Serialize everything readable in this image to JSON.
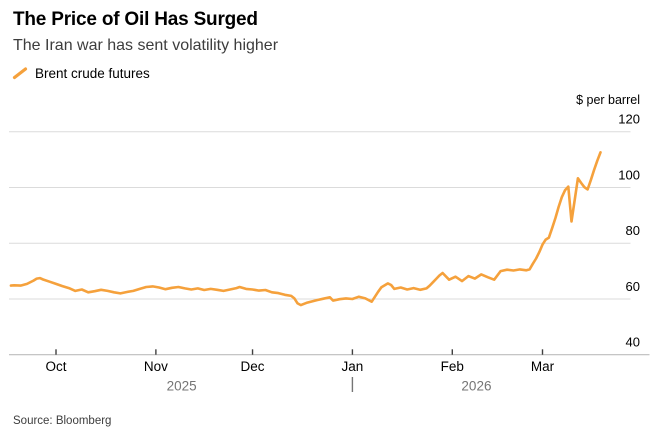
{
  "header": {
    "title": "The Price of Oil Has Surged",
    "subtitle": "The Iran war has sent volatility higher",
    "legend": {
      "label": "Brent crude futures"
    }
  },
  "footer": {
    "source": "Source: Bloomberg"
  },
  "colors": {
    "line": "#F5A13C",
    "gridline": "#DBDBDB",
    "axis_line": "#BDBDBD",
    "tick": "#3F3F3F",
    "axis_text": "#000000",
    "year_text": "#757575",
    "subtitle_text": "#3D3D3D",
    "source_text": "#3D3D3D"
  },
  "chart_data": {
    "type": "line",
    "title": "The Price of Oil Has Surged",
    "subtitle": "The Iran war has sent volatility higher",
    "y_axis": {
      "unit_label": "$ per barrel",
      "ticks": [
        40,
        60,
        80,
        100,
        120
      ],
      "min": 40,
      "max": 124,
      "gridlines": true,
      "label_side": "right"
    },
    "x_axis": {
      "start_date": "2025-09-17",
      "end_date": "2026-03-19",
      "day_unit": "days since start_date",
      "month_ticks": [
        {
          "label": "Oct",
          "day": 14
        },
        {
          "label": "Nov",
          "day": 45
        },
        {
          "label": "Dec",
          "day": 75
        },
        {
          "label": "Jan",
          "day": 106
        },
        {
          "label": "Feb",
          "day": 137
        },
        {
          "label": "Mar",
          "day": 165
        }
      ],
      "year_labels": [
        {
          "label": "2025",
          "day": 53
        },
        {
          "label": "2026",
          "day": 144.5
        }
      ],
      "year_separator_day": 106
    },
    "series": [
      {
        "name": "Brent crude futures",
        "color": "#F5A13C",
        "points": [
          [
            0,
            64.8
          ],
          [
            1,
            64.9
          ],
          [
            3,
            64.8
          ],
          [
            5,
            65.4
          ],
          [
            7,
            66.6
          ],
          [
            8,
            67.3
          ],
          [
            9,
            67.5
          ],
          [
            10,
            67.0
          ],
          [
            12,
            66.2
          ],
          [
            14,
            65.4
          ],
          [
            16,
            64.6
          ],
          [
            18,
            63.9
          ],
          [
            20,
            62.9
          ],
          [
            22,
            63.4
          ],
          [
            24,
            62.4
          ],
          [
            26,
            62.8
          ],
          [
            28,
            63.3
          ],
          [
            30,
            62.9
          ],
          [
            32,
            62.4
          ],
          [
            34,
            62.0
          ],
          [
            36,
            62.5
          ],
          [
            38,
            62.9
          ],
          [
            40,
            63.6
          ],
          [
            42,
            64.3
          ],
          [
            44,
            64.5
          ],
          [
            46,
            64.1
          ],
          [
            48,
            63.5
          ],
          [
            50,
            64.0
          ],
          [
            52,
            64.3
          ],
          [
            54,
            63.8
          ],
          [
            56,
            63.4
          ],
          [
            58,
            63.8
          ],
          [
            60,
            63.2
          ],
          [
            62,
            63.6
          ],
          [
            64,
            63.3
          ],
          [
            66,
            62.9
          ],
          [
            68,
            63.4
          ],
          [
            70,
            63.9
          ],
          [
            71,
            64.3
          ],
          [
            73,
            63.6
          ],
          [
            75,
            63.4
          ],
          [
            77,
            63.0
          ],
          [
            79,
            63.2
          ],
          [
            81,
            62.4
          ],
          [
            83,
            62.1
          ],
          [
            85,
            61.5
          ],
          [
            87,
            61.1
          ],
          [
            88,
            60.2
          ],
          [
            89,
            58.4
          ],
          [
            90,
            57.8
          ],
          [
            92,
            58.7
          ],
          [
            95,
            59.6
          ],
          [
            97,
            60.1
          ],
          [
            99,
            60.6
          ],
          [
            100,
            59.4
          ],
          [
            102,
            59.9
          ],
          [
            104,
            60.2
          ],
          [
            106,
            60.0
          ],
          [
            108,
            60.8
          ],
          [
            110,
            60.2
          ],
          [
            112,
            59.0
          ],
          [
            114,
            62.6
          ],
          [
            115,
            64.2
          ],
          [
            117,
            65.6
          ],
          [
            118,
            65.0
          ],
          [
            119,
            63.6
          ],
          [
            121,
            64.1
          ],
          [
            123,
            63.4
          ],
          [
            125,
            63.9
          ],
          [
            127,
            63.3
          ],
          [
            129,
            63.8
          ],
          [
            130,
            64.8
          ],
          [
            131,
            66.0
          ],
          [
            132,
            67.2
          ],
          [
            133,
            68.4
          ],
          [
            134,
            69.3
          ],
          [
            136,
            66.9
          ],
          [
            138,
            68.0
          ],
          [
            140,
            66.4
          ],
          [
            142,
            68.2
          ],
          [
            144,
            67.3
          ],
          [
            146,
            68.8
          ],
          [
            148,
            67.8
          ],
          [
            150,
            66.9
          ],
          [
            152,
            70.0
          ],
          [
            154,
            70.5
          ],
          [
            156,
            70.2
          ],
          [
            158,
            70.6
          ],
          [
            160,
            70.3
          ],
          [
            161,
            70.6
          ],
          [
            162,
            72.6
          ],
          [
            163,
            74.5
          ],
          [
            164,
            76.8
          ],
          [
            165,
            79.5
          ],
          [
            166,
            81.3
          ],
          [
            167,
            82.0
          ],
          [
            168,
            85.5
          ],
          [
            169,
            89.0
          ],
          [
            170,
            93.0
          ],
          [
            171,
            96.5
          ],
          [
            172,
            99.0
          ],
          [
            173,
            100.3
          ],
          [
            174,
            87.8
          ],
          [
            175,
            95.5
          ],
          [
            176,
            103.3
          ],
          [
            177,
            101.6
          ],
          [
            178,
            100.1
          ],
          [
            179,
            99.3
          ],
          [
            180,
            102.6
          ],
          [
            181,
            106.2
          ],
          [
            182,
            109.6
          ],
          [
            183,
            112.6
          ]
        ]
      }
    ]
  }
}
